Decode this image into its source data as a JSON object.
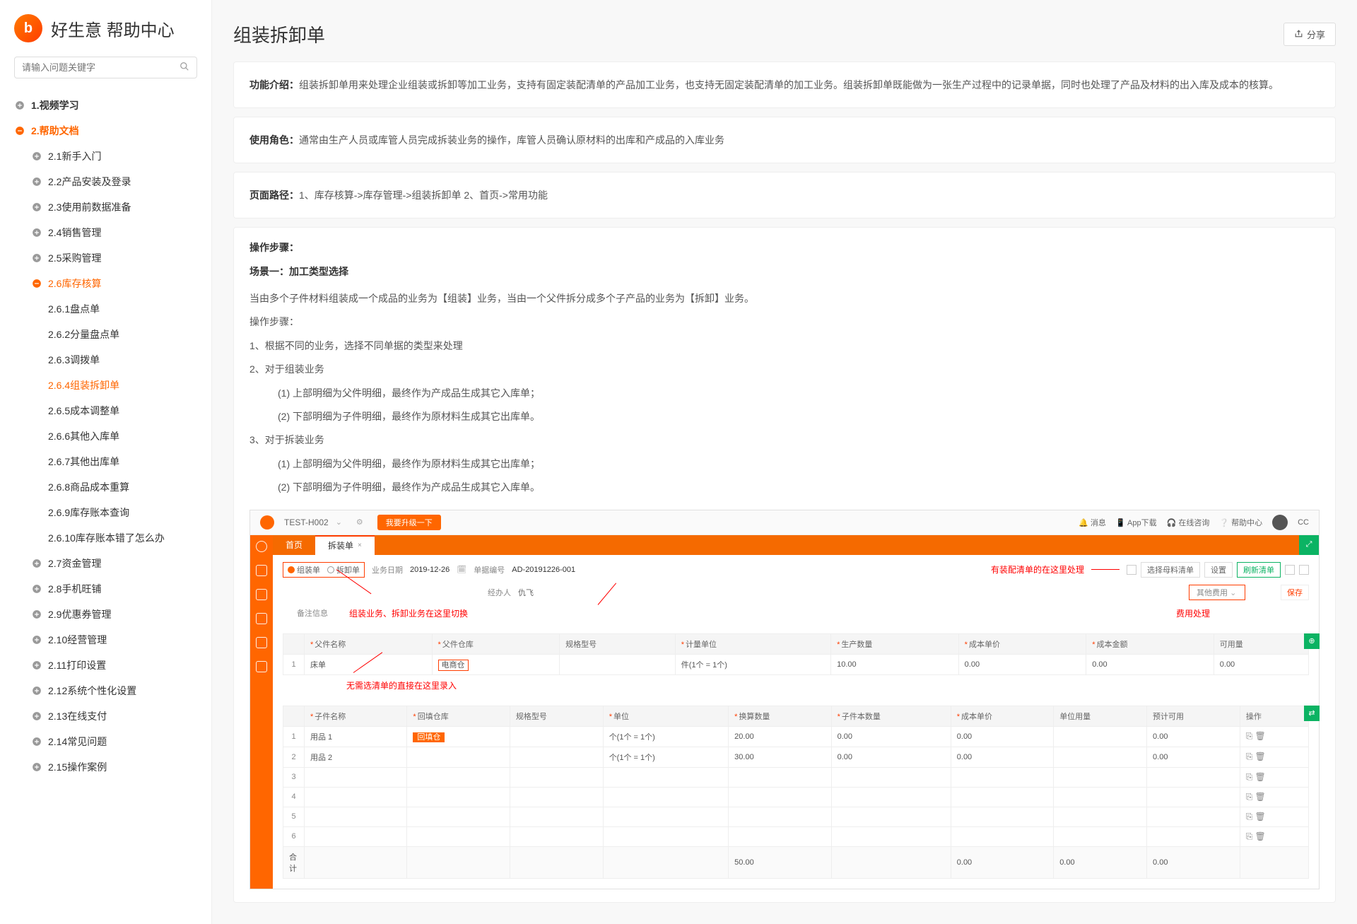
{
  "brand": {
    "logo_text": "b",
    "title": "好生意 帮助中心"
  },
  "search": {
    "placeholder": "请输入问题关键字"
  },
  "nav": {
    "items": [
      {
        "label": "1.视频学习",
        "expanded": false
      },
      {
        "label": "2.帮助文档",
        "expanded": true,
        "active": true,
        "children": [
          {
            "label": "2.1新手入门"
          },
          {
            "label": "2.2产品安装及登录"
          },
          {
            "label": "2.3使用前数据准备"
          },
          {
            "label": "2.4销售管理"
          },
          {
            "label": "2.5采购管理"
          },
          {
            "label": "2.6库存核算",
            "expanded": true,
            "active": true,
            "leaves": [
              {
                "label": "2.6.1盘点单"
              },
              {
                "label": "2.6.2分量盘点单"
              },
              {
                "label": "2.6.3调拨单"
              },
              {
                "label": "2.6.4组装拆卸单",
                "active": true
              },
              {
                "label": "2.6.5成本调整单"
              },
              {
                "label": "2.6.6其他入库单"
              },
              {
                "label": "2.6.7其他出库单"
              },
              {
                "label": "2.6.8商品成本重算"
              },
              {
                "label": "2.6.9库存账本查询"
              },
              {
                "label": "2.6.10库存账本错了怎么办"
              }
            ]
          },
          {
            "label": "2.7资金管理"
          },
          {
            "label": "2.8手机旺铺"
          },
          {
            "label": "2.9优惠券管理"
          },
          {
            "label": "2.10经营管理"
          },
          {
            "label": "2.11打印设置"
          },
          {
            "label": "2.12系统个性化设置"
          },
          {
            "label": "2.13在线支付"
          },
          {
            "label": "2.14常见问题"
          },
          {
            "label": "2.15操作案例"
          }
        ]
      }
    ]
  },
  "page": {
    "title": "组装拆卸单",
    "share": "分享"
  },
  "panels": {
    "intro_label": "功能介绍：",
    "intro_text": "组装拆卸单用来处理企业组装或拆卸等加工业务，支持有固定装配清单的产品加工业务，也支持无固定装配清单的加工业务。组装拆卸单既能做为一张生产过程中的记录单据，同时也处理了产品及材料的出入库及成本的核算。",
    "role_label": "使用角色：",
    "role_text": "通常由生产人员或库管人员完成拆装业务的操作，库管人员确认原材料的出库和产成品的入库业务",
    "path_label": "页面路径：",
    "path_text": "1、库存核算->库存管理->组装拆卸单  2、首页->常用功能"
  },
  "steps": {
    "title": "操作步骤：",
    "scene_title": "场景一：加工类型选择",
    "scene_desc": "当由多个子件材料组装成一个成品的业务为【组装】业务，当由一个父件拆分成多个子产品的业务为【拆卸】业务。",
    "steps_label": "操作步骤：",
    "s1": "1、根据不同的业务，选择不同单据的类型来处理",
    "s2": "2、对于组装业务",
    "s2a": "(1)  上部明细为父件明细，最终作为产成品生成其它入库单；",
    "s2b": "(2)  下部明细为子件明细，最终作为原材料生成其它出库单。",
    "s3": "3、对于拆装业务",
    "s3a": "(1)  上部明细为父件明细，最终作为原材料生成其它出库单；",
    "s3b": "(2)  下部明细为子件明细，最终作为产成品生成其它入库单。"
  },
  "screenshot": {
    "account": "TEST-H002",
    "pill": "我要升级一下",
    "topright": {
      "msg": "消息",
      "app": "App下载",
      "refer": "在线咨询",
      "help": "帮助中心",
      "user": "CC"
    },
    "tabs": {
      "home": "首页",
      "active": "拆装单",
      "close": "×",
      "expand": "⤢"
    },
    "form": {
      "radio_zz": "组装单",
      "radio_cx": "拆卸单",
      "date_label": "业务日期",
      "date_val": "2019-12-26",
      "doc_label": "单据编号",
      "doc_val": "AD-20191226-001",
      "anno_list": "有装配清单的在这里处理",
      "btn_list": "选择母料清单",
      "btn_set": "设置",
      "btn_clear": "刷新清单",
      "worker_label": "经办人",
      "worker_val": "仇飞",
      "cost_label": "其他费用",
      "remark_label": "备注信息",
      "save": "保存",
      "anno_switch": "组装业务、拆卸业务在这里切换",
      "anno_cost": "费用处理"
    },
    "table1": {
      "headers": [
        "",
        "父件名称",
        "父件仓库",
        "规格型号",
        "计量单位",
        "生产数量",
        "成本单价",
        "成本金额",
        "可用量"
      ],
      "row": [
        "1",
        "床单",
        "电商仓",
        "",
        "件(1个 = 1个)",
        "10.00",
        "0.00",
        "0.00",
        "0.00"
      ],
      "anno_direct": "无需选清单的直接在这里录入"
    },
    "table2": {
      "headers": [
        "",
        "子件名称",
        "回填仓库",
        "规格型号",
        "单位",
        "换算数量",
        "子件本数量",
        "成本单价",
        "单位用量",
        "预计可用",
        "操作"
      ],
      "rows": [
        [
          "1",
          "用品 1",
          "",
          "",
          "个(1个 = 1个)",
          "20.00",
          "0.00",
          "0.00",
          "",
          "0.00",
          ""
        ],
        [
          "2",
          "用品 2",
          "",
          "",
          "个(1个 = 1个)",
          "30.00",
          "0.00",
          "0.00",
          "",
          "0.00",
          ""
        ],
        [
          "3",
          "",
          "",
          "",
          "",
          "",
          "",
          "",
          "",
          "",
          ""
        ],
        [
          "4",
          "",
          "",
          "",
          "",
          "",
          "",
          "",
          "",
          "",
          ""
        ],
        [
          "5",
          "",
          "",
          "",
          "",
          "",
          "",
          "",
          "",
          "",
          ""
        ],
        [
          "6",
          "",
          "",
          "",
          "",
          "",
          "",
          "",
          "",
          "",
          ""
        ]
      ],
      "total": [
        "合计",
        "",
        "",
        "",
        "",
        "50.00",
        "",
        "0.00",
        "0.00",
        "0.00",
        ""
      ]
    }
  }
}
